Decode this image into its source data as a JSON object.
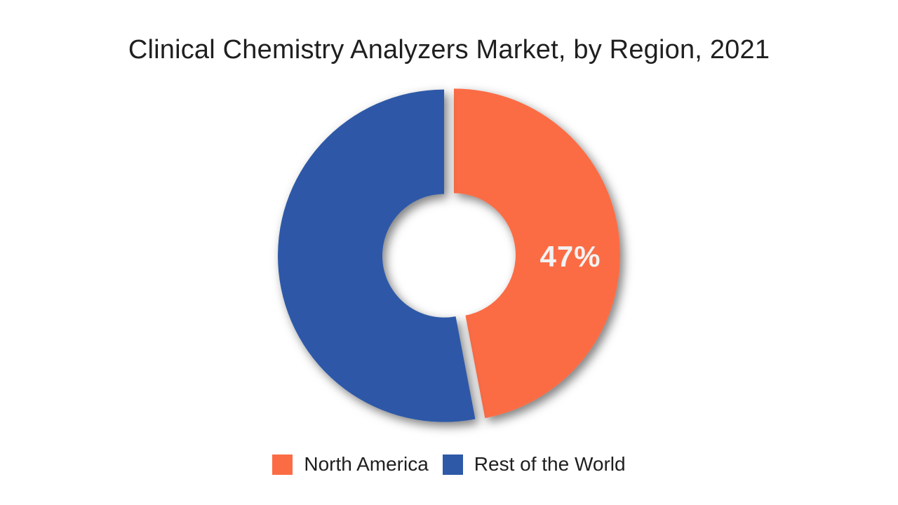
{
  "chart_data": {
    "type": "pie",
    "subtype": "donut",
    "title": "Clinical Chemistry Analyzers Market, by Region, 2021",
    "categories": [
      "North America",
      "Rest of the World"
    ],
    "values": [
      47,
      53
    ],
    "unit": "%",
    "colors": [
      "#FB6C45",
      "#2E59A7"
    ],
    "start_angle_deg": 0,
    "direction": "clockwise",
    "donut_hole_ratio": 0.37,
    "exploded_slices": true,
    "legend_position": "bottom",
    "data_labels": [
      {
        "category": "North America",
        "text": "47%",
        "color": "#F2F2F2"
      }
    ]
  },
  "legend": {
    "items": [
      {
        "label": "North America",
        "color": "#FB6C45"
      },
      {
        "label": "Rest of the World",
        "color": "#2E59A7"
      }
    ]
  }
}
